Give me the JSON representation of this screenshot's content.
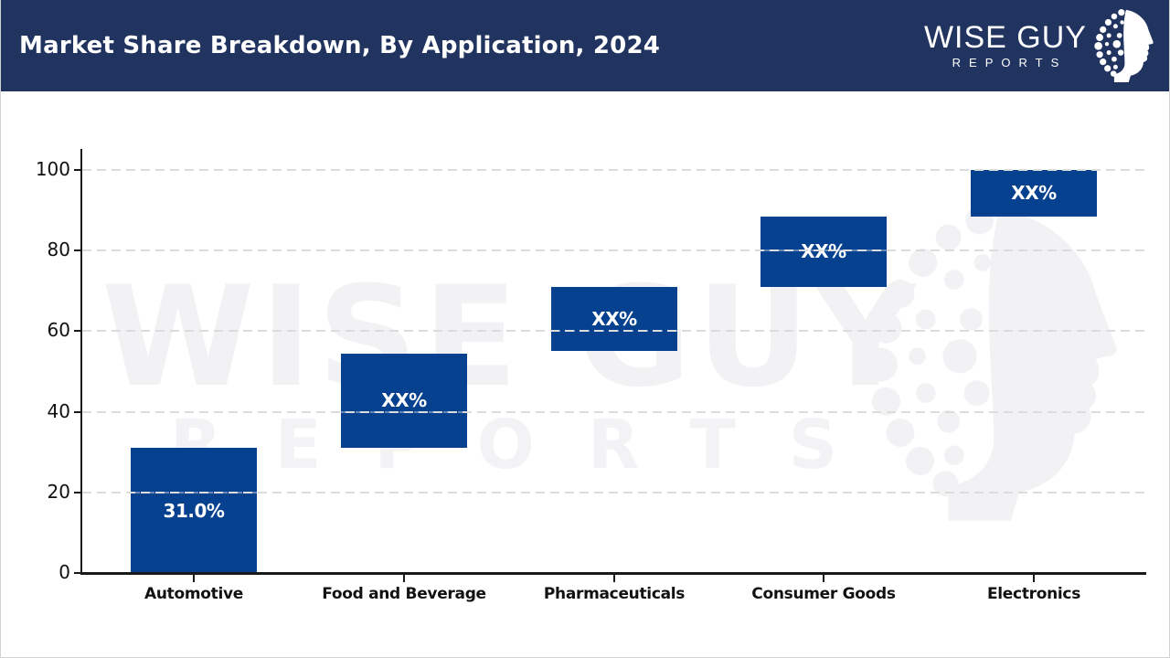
{
  "header": {
    "title": "Market Share Breakdown, By Application, 2024",
    "logo": {
      "line1": "WISE GUY",
      "line2": "REPORTS"
    },
    "bg_color": "#213460"
  },
  "watermark": {
    "line1": "WISE GUY",
    "line2": "REPORTS"
  },
  "chart_data": {
    "type": "bar",
    "subtype": "waterfall",
    "title": "Market Share Breakdown, By Application, 2024",
    "categories": [
      "Automotive",
      "Food and Beverage",
      "Pharmaceuticals",
      "Consumer Goods",
      "Electronics"
    ],
    "segments": [
      {
        "category": "Automotive",
        "start": 0,
        "end": 31,
        "value_label": "31.0%"
      },
      {
        "category": "Food and Beverage",
        "start": 31,
        "end": 54.5,
        "value_label": "XX%"
      },
      {
        "category": "Pharmaceuticals",
        "start": 55,
        "end": 71,
        "value_label": "XX%"
      },
      {
        "category": "Consumer Goods",
        "start": 71,
        "end": 88.5,
        "value_label": "XX%"
      },
      {
        "category": "Electronics",
        "start": 88.5,
        "end": 100,
        "value_label": "XX%"
      }
    ],
    "y_ticks": [
      0,
      20,
      40,
      60,
      80,
      100
    ],
    "ylim": [
      0,
      100
    ],
    "xlabel": "",
    "ylabel": "",
    "grid": "dashed-horizontal",
    "legend": "none",
    "bar_color": "#05418f",
    "label_color": "#ffffff"
  }
}
